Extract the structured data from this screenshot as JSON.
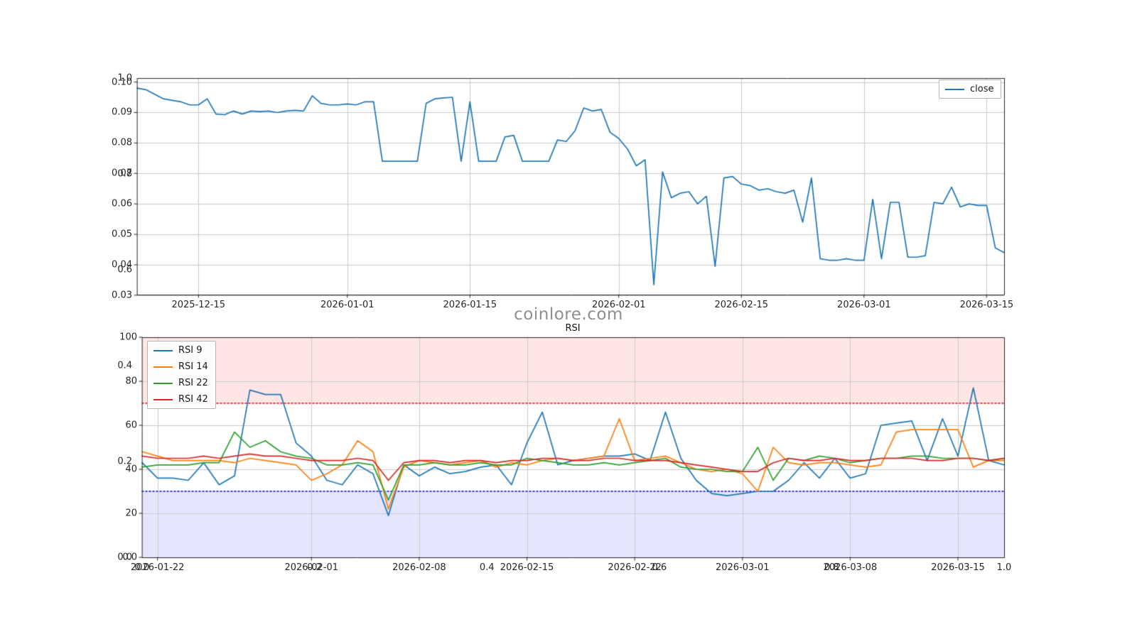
{
  "watermark": "coinlore.com",
  "overlay_axis_labels": {
    "y": [
      "1.0",
      "0.8",
      "0.6",
      "0.4",
      "0.2",
      "0.0"
    ],
    "x": [
      "0.0",
      "0.2",
      "0.4",
      "0.6",
      "0.8",
      "1.0"
    ]
  },
  "chart_data": [
    {
      "type": "line",
      "name": "price",
      "title": "",
      "legend": {
        "position": "upper right"
      },
      "start_date": "2025-12-08",
      "frequency": "daily",
      "xlim": [
        "2025-12-08",
        "2026-03-17"
      ],
      "ylim": [
        0.0302,
        0.1013
      ],
      "grid": true,
      "xticks": [
        "2025-12-15",
        "2026-01-01",
        "2026-01-15",
        "2026-02-01",
        "2026-02-15",
        "2026-03-01",
        "2026-03-15"
      ],
      "yticks": {
        "values": [
          0.03,
          0.04,
          0.05,
          0.06,
          0.07,
          0.08,
          0.09,
          0.1
        ],
        "labels": [
          "0.03",
          "0.04",
          "0.05",
          "0.06",
          "0.07",
          "0.08",
          "0.09",
          "0.10"
        ]
      },
      "series": [
        {
          "name": "close",
          "color": "#1f77b4",
          "values": [
            0.098,
            0.0975,
            0.096,
            0.0945,
            0.094,
            0.0935,
            0.0925,
            0.0925,
            0.0945,
            0.0895,
            0.0893,
            0.0905,
            0.0895,
            0.0905,
            0.0903,
            0.0905,
            0.09,
            0.0905,
            0.0907,
            0.0905,
            0.0955,
            0.093,
            0.0925,
            0.0925,
            0.0928,
            0.0925,
            0.0935,
            0.0935,
            0.074,
            0.074,
            0.074,
            0.074,
            0.074,
            0.093,
            0.0945,
            0.0948,
            0.095,
            0.074,
            0.0935,
            0.074,
            0.074,
            0.074,
            0.082,
            0.0825,
            0.074,
            0.074,
            0.074,
            0.074,
            0.081,
            0.0805,
            0.084,
            0.0915,
            0.0905,
            0.091,
            0.0835,
            0.0815,
            0.078,
            0.0725,
            0.0745,
            0.0335,
            0.0705,
            0.062,
            0.0635,
            0.064,
            0.06,
            0.0625,
            0.0395,
            0.0685,
            0.069,
            0.0665,
            0.066,
            0.0645,
            0.065,
            0.064,
            0.0635,
            0.0645,
            0.054,
            0.0685,
            0.042,
            0.0415,
            0.0415,
            0.042,
            0.0415,
            0.0415,
            0.0615,
            0.042,
            0.0605,
            0.0605,
            0.0425,
            0.0425,
            0.043,
            0.0605,
            0.06,
            0.0655,
            0.059,
            0.06,
            0.0595,
            0.0595,
            0.0455,
            0.044
          ]
        }
      ]
    },
    {
      "type": "line",
      "name": "rsi",
      "title": "RSI",
      "legend": {
        "position": "upper left"
      },
      "start_date": "2026-01-21",
      "frequency": "daily",
      "xlim": [
        "2026-01-21",
        "2026-03-18"
      ],
      "ylim": [
        0,
        100
      ],
      "grid": true,
      "xticks": [
        "2026-01-22",
        "2026-02-01",
        "2026-02-08",
        "2026-02-15",
        "2026-02-22",
        "2026-03-01",
        "2026-03-08",
        "2026-03-15"
      ],
      "yticks": {
        "values": [
          0,
          20,
          40,
          60,
          80,
          100
        ],
        "labels": [
          "0.0",
          "20",
          "40",
          "60",
          "80",
          "100"
        ]
      },
      "bands": [
        {
          "from": 70,
          "to": 100,
          "color": "rgba(255,0,0,0.10)",
          "meaning": "overbought"
        },
        {
          "from": 0,
          "to": 30,
          "color": "rgba(0,0,255,0.10)",
          "meaning": "oversold"
        }
      ],
      "hlines": [
        {
          "y": 70,
          "color": "#e00000",
          "style": "dotted"
        },
        {
          "y": 30,
          "color": "#0000dd",
          "style": "dotted"
        }
      ],
      "series": [
        {
          "name": "RSI 9",
          "color": "#1f77b4",
          "values": [
            43,
            36,
            36,
            35,
            43,
            33,
            37,
            76,
            74,
            74,
            52,
            46,
            35,
            33,
            42,
            38,
            19,
            42,
            37,
            41,
            38,
            39,
            41,
            42,
            33,
            52,
            66,
            42,
            44,
            45,
            46,
            46,
            47,
            44,
            66,
            45,
            35,
            29,
            28,
            29,
            30,
            30,
            35,
            43,
            36,
            45,
            36,
            38,
            60,
            61,
            62,
            44,
            63,
            46,
            77,
            44,
            42
          ]
        },
        {
          "name": "RSI 14",
          "color": "#ff7f0e",
          "values": [
            48,
            46,
            44,
            44,
            44,
            44,
            43,
            45,
            44,
            43,
            42,
            35,
            38,
            42,
            53,
            48,
            22,
            41,
            44,
            43,
            42,
            43,
            44,
            41,
            43,
            42,
            44,
            45,
            44,
            45,
            46,
            63,
            44,
            45,
            46,
            43,
            40,
            39,
            40,
            38,
            30,
            50,
            43,
            42,
            43,
            43,
            42,
            41,
            42,
            57,
            58,
            58,
            58,
            58,
            41,
            44,
            44
          ]
        },
        {
          "name": "RSI 22",
          "color": "#2ca02c",
          "values": [
            41,
            42,
            42,
            42,
            43,
            43,
            57,
            50,
            53,
            48,
            46,
            45,
            42,
            42,
            43,
            42,
            26,
            42,
            42,
            43,
            42,
            42,
            43,
            42,
            42,
            45,
            44,
            43,
            42,
            42,
            43,
            42,
            43,
            44,
            45,
            41,
            40,
            40,
            39,
            39,
            50,
            35,
            45,
            44,
            46,
            45,
            43,
            44,
            45,
            45,
            46,
            46,
            45,
            45,
            45,
            44,
            45
          ]
        },
        {
          "name": "RSI 42",
          "color": "#d62728",
          "values": [
            46,
            45,
            45,
            45,
            46,
            45,
            46,
            47,
            46,
            46,
            45,
            44,
            44,
            44,
            45,
            44,
            35,
            43,
            44,
            44,
            43,
            44,
            44,
            43,
            44,
            44,
            45,
            45,
            44,
            44,
            45,
            45,
            44,
            44,
            44,
            43,
            42,
            41,
            40,
            39,
            39,
            43,
            45,
            44,
            44,
            45,
            44,
            44,
            45,
            45,
            45,
            44,
            44,
            45,
            45,
            44,
            45
          ]
        }
      ]
    }
  ]
}
